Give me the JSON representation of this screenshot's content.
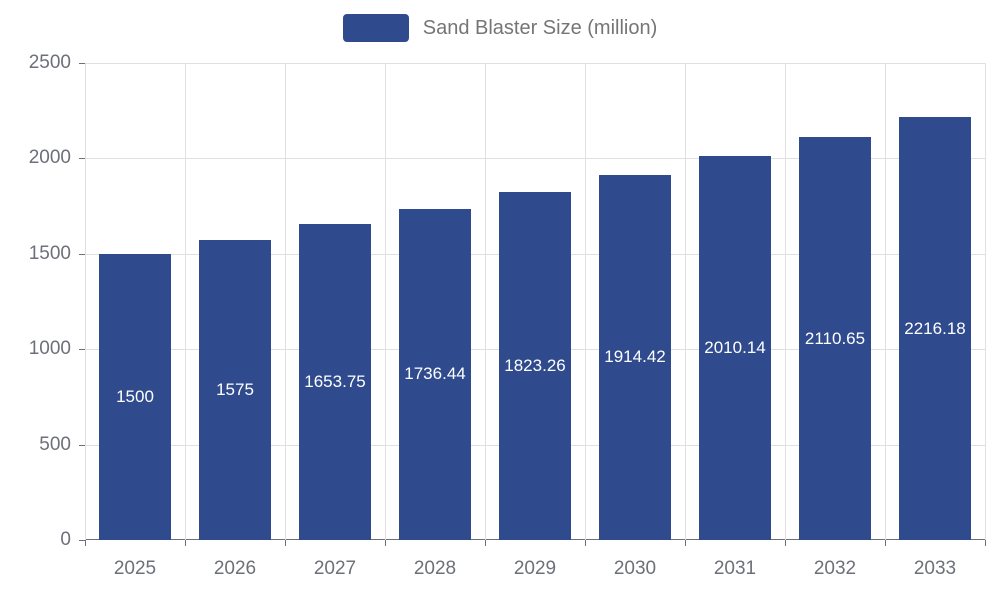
{
  "legend": {
    "label": "Sand Blaster Size (million)"
  },
  "chart_data": {
    "type": "bar",
    "title": "Sand Blaster Size (million)",
    "categories": [
      "2025",
      "2026",
      "2027",
      "2028",
      "2029",
      "2030",
      "2031",
      "2032",
      "2033"
    ],
    "values": [
      1500,
      1575,
      1653.75,
      1736.44,
      1823.26,
      1914.42,
      2010.14,
      2110.65,
      2216.18
    ],
    "value_labels": [
      "1500",
      "1575",
      "1653.75",
      "1736.44",
      "1823.26",
      "1914.42",
      "2010.14",
      "2110.65",
      "2216.18"
    ],
    "xlabel": "",
    "ylabel": "",
    "ylim": [
      0,
      2500
    ],
    "yticks": [
      0,
      500,
      1000,
      1500,
      2000,
      2500
    ],
    "grid": true,
    "legend_position": "top",
    "bar_color": "#2f4b8d",
    "bar_label_color": "#ffffff",
    "axis_text_color": "#6e7079",
    "grid_color": "#e0e0e0",
    "axis_line_color": "#6e7079"
  }
}
